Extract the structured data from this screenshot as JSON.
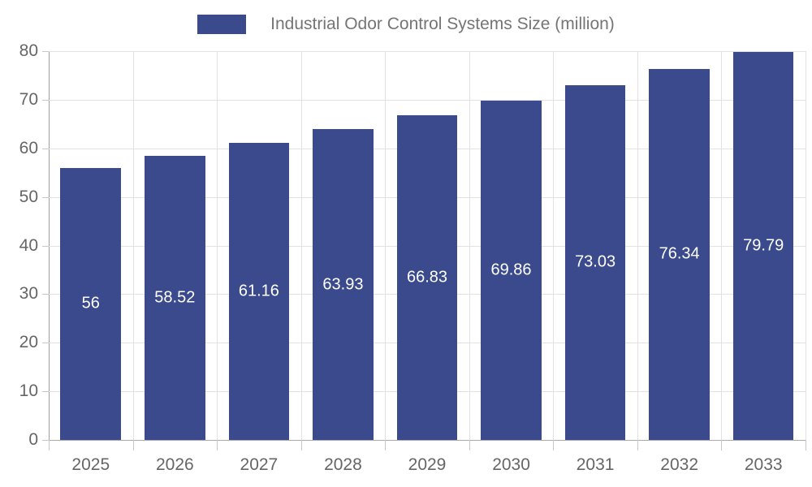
{
  "chart_data": {
    "type": "bar",
    "title": "Industrial Odor Control Systems Size (million)",
    "legend": {
      "label": "Industrial Odor Control Systems Size (million)",
      "position": "top"
    },
    "categories": [
      "2025",
      "2026",
      "2027",
      "2028",
      "2029",
      "2030",
      "2031",
      "2032",
      "2033"
    ],
    "series": [
      {
        "name": "Industrial Odor Control Systems Size (million)",
        "values": [
          56,
          58.52,
          61.16,
          63.93,
          66.83,
          69.86,
          73.03,
          76.34,
          79.79
        ]
      }
    ],
    "value_labels": [
      "56",
      "58.52",
      "61.16",
      "63.93",
      "66.83",
      "69.86",
      "73.03",
      "76.34",
      "79.79"
    ],
    "xlabel": "",
    "ylabel": "",
    "ylim": [
      0,
      80
    ],
    "ytick_interval": 10,
    "ytick_labels": [
      "0",
      "10",
      "20",
      "30",
      "40",
      "50",
      "60",
      "70",
      "80"
    ],
    "grid": true,
    "colors": {
      "bar": "#3A4A8C",
      "value_label": "#FFFFFF",
      "axis_line_y": "#9E9E9E",
      "axis_line_x": "#AAAAAA",
      "gridline": "#E2E2E2",
      "tick": "#C8C8C8",
      "axis_text": "#666666",
      "legend_text": "#757575",
      "background": "#FFFFFF"
    }
  }
}
